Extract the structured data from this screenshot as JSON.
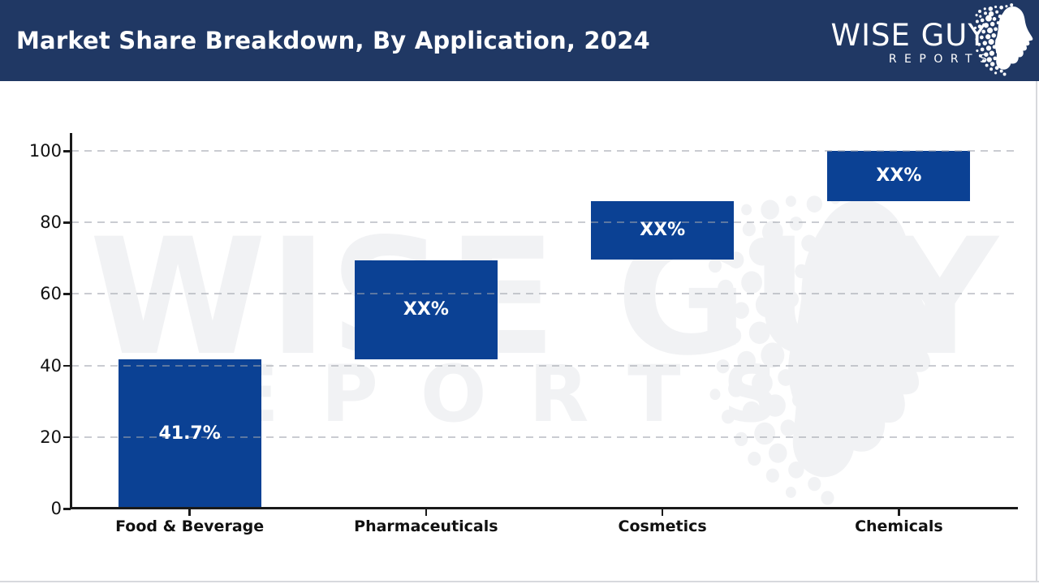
{
  "header": {
    "title": "Market Share Breakdown, By Application, 2024",
    "bg_color": "#203864",
    "logo": {
      "line1": "WISE GUY",
      "line2": "REPORTS"
    }
  },
  "watermark": {
    "line1": "WISE GUY",
    "line2": "REPORTS"
  },
  "chart_data": {
    "type": "bar",
    "variant": "waterfall",
    "title": "Market Share Breakdown, By Application, 2024",
    "categories": [
      "Food & Beverage",
      "Pharmaceuticals",
      "Cosmetics",
      "Chemicals"
    ],
    "segments": [
      {
        "category": "Food & Beverage",
        "start": 0,
        "end": 41.7,
        "label": "41.7%"
      },
      {
        "category": "Pharmaceuticals",
        "start": 41.7,
        "end": 69.5,
        "label": "XX%"
      },
      {
        "category": "Cosmetics",
        "start": 69.5,
        "end": 85.9,
        "label": "XX%"
      },
      {
        "category": "Chemicals",
        "start": 85.9,
        "end": 100,
        "label": "XX%"
      }
    ],
    "xlabel": "",
    "ylabel": "",
    "yticks": [
      0,
      20,
      40,
      60,
      80,
      100
    ],
    "ylim": [
      0,
      105
    ],
    "grid": true,
    "grid_style": "dashed",
    "legend": false,
    "bar_color": "#0b4194",
    "bar_label_color": "#ffffff"
  }
}
